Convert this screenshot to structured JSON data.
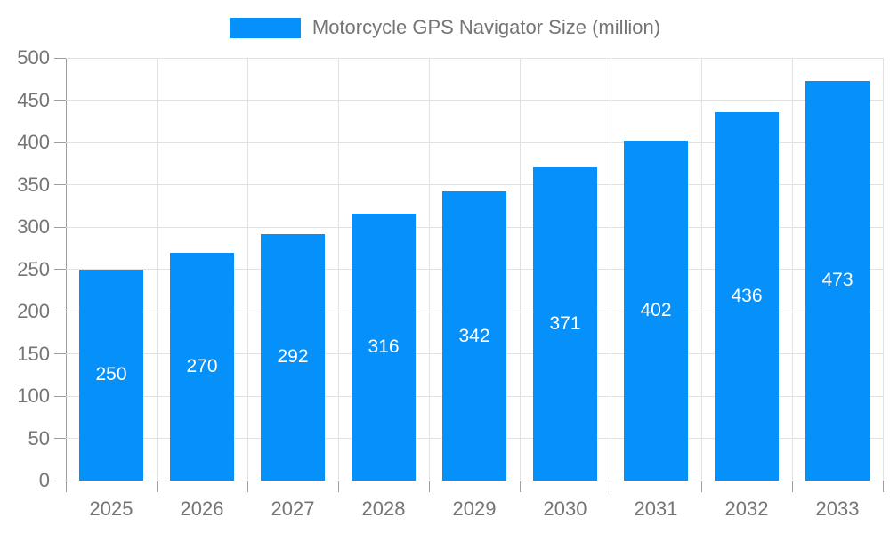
{
  "chart_data": {
    "type": "bar",
    "categories": [
      "2025",
      "2026",
      "2027",
      "2028",
      "2029",
      "2030",
      "2031",
      "2032",
      "2033"
    ],
    "values": [
      250,
      270,
      292,
      316,
      342,
      371,
      402,
      436,
      473
    ],
    "legend": "Motorcycle GPS Navigator Size (million)",
    "title": "",
    "xlabel": "",
    "ylabel": "",
    "ylim": [
      0,
      500
    ],
    "ytick_step": 50,
    "yticks": [
      0,
      50,
      100,
      150,
      200,
      250,
      300,
      350,
      400,
      450,
      500
    ],
    "grid": true,
    "legend_position": "top-center",
    "bar_label_position": "inside-center"
  },
  "colors": {
    "bar": "#0690fa",
    "text": "#757575",
    "bar_label": "#ffffff",
    "axis": "#9e9e9e",
    "grid": "#e2e2e2",
    "background": "#ffffff"
  }
}
